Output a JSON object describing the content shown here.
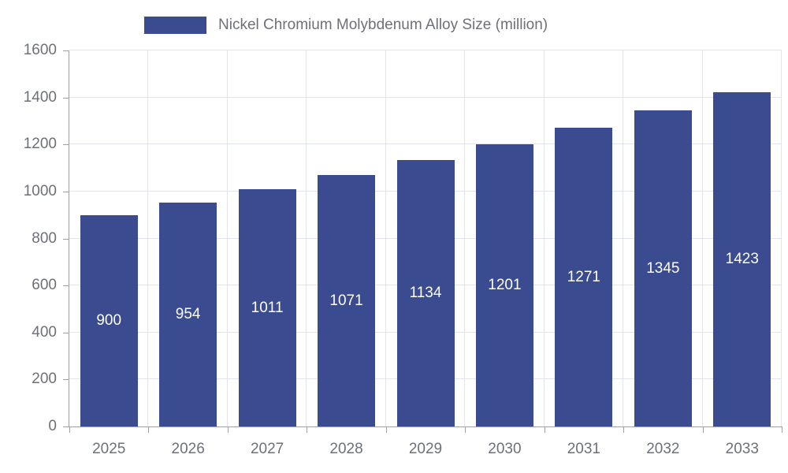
{
  "legend": {
    "label": "Nickel Chromium Molybdenum Alloy Size (million)"
  },
  "chart_data": {
    "type": "bar",
    "title": "",
    "categories": [
      "2025",
      "2026",
      "2027",
      "2028",
      "2029",
      "2030",
      "2031",
      "2032",
      "2033"
    ],
    "series": [
      {
        "name": "Nickel Chromium Molybdenum Alloy Size (million)",
        "values": [
          900,
          954,
          1011,
          1071,
          1134,
          1201,
          1271,
          1345,
          1423
        ]
      }
    ],
    "xlabel": "",
    "ylabel": "",
    "ylim": [
      0,
      1600
    ],
    "yticks": [
      0,
      200,
      400,
      600,
      800,
      1000,
      1200,
      1400,
      1600
    ],
    "grid": true,
    "legend_position": "top-center",
    "bar_label_position": "inside-center",
    "colors": {
      "bar": "#3A4B90",
      "bar_label": "#FFFFFF",
      "axis_text": "#6E7079",
      "axis_line": "#9CA0A6",
      "gridline": "#E2E5EB",
      "background": "#FFFFFF"
    }
  }
}
